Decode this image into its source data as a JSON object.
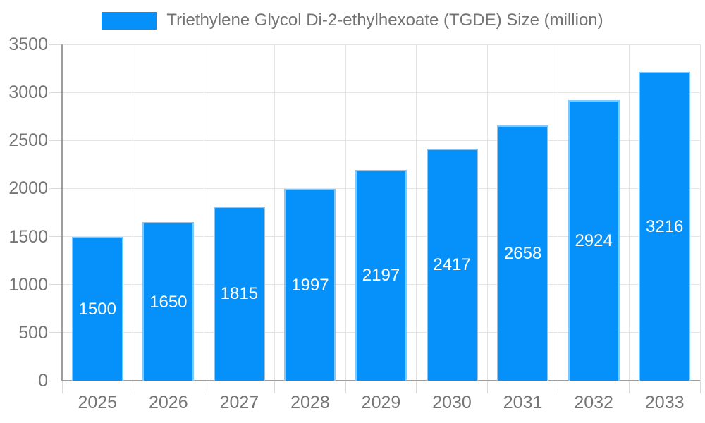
{
  "legend": {
    "label": "Triethylene Glycol Di-2-ethylhexoate (TGDE) Size (million)"
  },
  "chart_data": {
    "type": "bar",
    "title": "Triethylene Glycol Di-2-ethylhexoate (TGDE) Size (million)",
    "categories": [
      "2025",
      "2026",
      "2027",
      "2028",
      "2029",
      "2030",
      "2031",
      "2032",
      "2033"
    ],
    "values": [
      1500,
      1650,
      1815,
      1997,
      2197,
      2417,
      2658,
      2924,
      3216
    ],
    "xlabel": "",
    "ylabel": "",
    "ylim": [
      0,
      3500
    ],
    "ytick_step": 500,
    "yticks": [
      0,
      500,
      1000,
      1500,
      2000,
      2500,
      3000,
      3500
    ],
    "grid": true,
    "legend_position": "top",
    "value_labels_inside_bars": true,
    "colors": {
      "bar": "#0591f9",
      "axis_line": "#9e9e9e",
      "gridline": "#e4e4e4",
      "tick": "#dadada",
      "axis_text": "#757575",
      "legend_text": "#737373",
      "value_text": "#ffffff"
    }
  }
}
